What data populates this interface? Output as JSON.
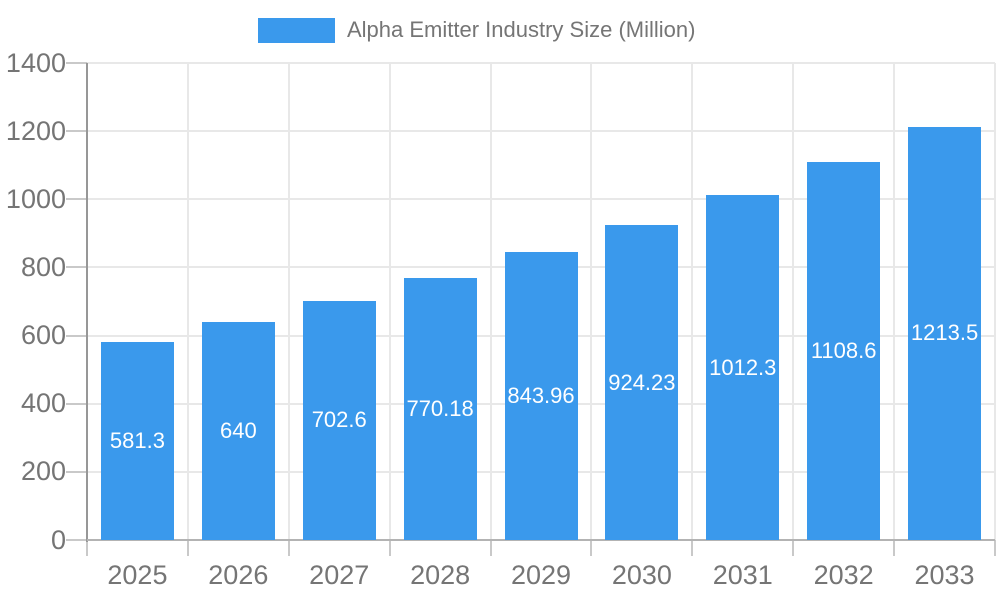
{
  "legend": {
    "label": "Alpha Emitter Industry Size (Million)",
    "swatch_color": "#3A99EC"
  },
  "chart_data": {
    "type": "bar",
    "title": "",
    "series_name": "Alpha Emitter Industry Size (Million)",
    "categories": [
      "2025",
      "2026",
      "2027",
      "2028",
      "2029",
      "2030",
      "2031",
      "2032",
      "2033"
    ],
    "values": [
      581.3,
      640,
      702.6,
      770.18,
      843.96,
      924.23,
      1012.3,
      1108.6,
      1213.5
    ],
    "data_labels": [
      "581.3",
      "640",
      "702.6",
      "770.18",
      "843.96",
      "924.23",
      "1012.3",
      "1108.6",
      "1213.5"
    ],
    "xlabel": "",
    "ylabel": "",
    "ylim": [
      0,
      1400
    ],
    "ytick_step": 200,
    "yticks": [
      0,
      200,
      400,
      600,
      800,
      1000,
      1200,
      1400
    ],
    "grid": true,
    "legend_position": "top-center",
    "bar_color": "#3A99EC",
    "bar_label_color": "#ffffff",
    "axis_text_color": "#757575",
    "gridline_color": "#e8e8e8",
    "axis_line_color": "#b3b3b3",
    "background_color": "#ffffff"
  }
}
